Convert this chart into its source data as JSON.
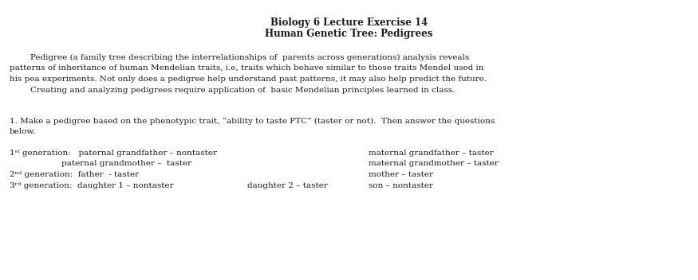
{
  "title_line1": "Biology 6 Lecture Exercise 14",
  "title_line2": "Human Genetic Tree: Pedigrees",
  "paragraph_lines": [
    "        Pedigree (a family tree describing the interrelationships of  parents across generations) analysis reveals",
    "patterns of inheritance of human Mendelian traits, i.e, traits which behave similar to those traits Mendel used in",
    "his pea experiments. Not only does a pedigree help understand past patterns, it may also help predict the future.",
    "        Creating and analyzing pedigrees require application of  basic Mendelian principles learned in class."
  ],
  "question_lines": [
    "1. Make a pedigree based on the phenotypic trait, “ability to taste PTC” (taster or not).  Then answer the questions",
    "below."
  ],
  "gen_row0_left": "1ˢᵗ generation:   paternal grandfather – nontaster",
  "gen_row0_right": "maternal grandfather – taster",
  "gen_row1_left": "                    paternal grandmother –  taster",
  "gen_row1_right": "maternal grandmother – taster",
  "gen_row2_left": "2ⁿᵈ generation:  father  - taster",
  "gen_row2_right": "mother – taster",
  "gen_row3_left": "3ʳᵈ generation:  daughter 1 – nontaster",
  "gen_row3_mid": "daughter 2 – taster",
  "gen_row3_right": "son – nontaster",
  "bg_color": "#ffffff",
  "text_color": "#1a1a1a",
  "font_size_title": 8.5,
  "font_size_body": 7.5
}
